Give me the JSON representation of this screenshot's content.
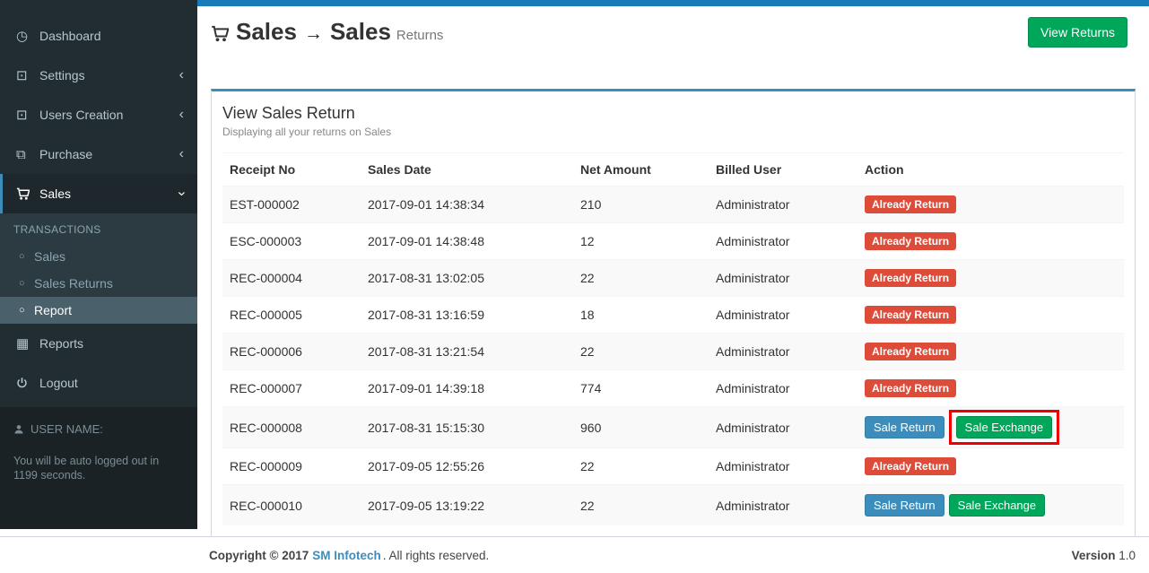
{
  "sidebar": {
    "items": [
      {
        "label": "Dashboard"
      },
      {
        "label": "Settings"
      },
      {
        "label": "Users Creation"
      },
      {
        "label": "Purchase"
      },
      {
        "label": "Sales"
      }
    ],
    "section_label": "TRANSACTIONS",
    "sub_items": [
      {
        "label": "Sales"
      },
      {
        "label": "Sales Returns"
      },
      {
        "label": "Report"
      }
    ],
    "other_items": [
      {
        "label": "Reports"
      },
      {
        "label": "Logout"
      }
    ],
    "user_label": "USER NAME:",
    "auto_logout_notice": "You will be auto logged out in 1199 seconds."
  },
  "icons": {
    "dashboard": "◷",
    "display": "⊡",
    "copy": "⧉",
    "circle": "○",
    "table": "▦",
    "chevron": "‹",
    "arrow": "→"
  },
  "header": {
    "title_primary": "Sales",
    "title_secondary": "Sales",
    "title_sub": "Returns",
    "view_returns_button": "View Returns"
  },
  "panel": {
    "title": "View Sales Return",
    "subtitle": "Displaying all your returns on Sales"
  },
  "labels": {
    "already_return": "Already Return",
    "sale_return": "Sale Return",
    "sale_exchange": "Sale Exchange"
  },
  "table": {
    "columns": [
      "Receipt No",
      "Sales Date",
      "Net Amount",
      "Billed User",
      "Action"
    ],
    "rows": [
      {
        "receipt_no": "EST-000002",
        "sales_date": "2017-09-01 14:38:34",
        "net_amount": "210",
        "billed_user": "Administrator",
        "actions": [
          {
            "type": "already_return"
          }
        ]
      },
      {
        "receipt_no": "ESC-000003",
        "sales_date": "2017-09-01 14:38:48",
        "net_amount": "12",
        "billed_user": "Administrator",
        "actions": [
          {
            "type": "already_return"
          }
        ]
      },
      {
        "receipt_no": "REC-000004",
        "sales_date": "2017-08-31 13:02:05",
        "net_amount": "22",
        "billed_user": "Administrator",
        "actions": [
          {
            "type": "already_return"
          }
        ]
      },
      {
        "receipt_no": "REC-000005",
        "sales_date": "2017-08-31 13:16:59",
        "net_amount": "18",
        "billed_user": "Administrator",
        "actions": [
          {
            "type": "already_return"
          }
        ]
      },
      {
        "receipt_no": "REC-000006",
        "sales_date": "2017-08-31 13:21:54",
        "net_amount": "22",
        "billed_user": "Administrator",
        "actions": [
          {
            "type": "already_return"
          }
        ]
      },
      {
        "receipt_no": "REC-000007",
        "sales_date": "2017-09-01 14:39:18",
        "net_amount": "774",
        "billed_user": "Administrator",
        "actions": [
          {
            "type": "already_return"
          }
        ]
      },
      {
        "receipt_no": "REC-000008",
        "sales_date": "2017-08-31 15:15:30",
        "net_amount": "960",
        "billed_user": "Administrator",
        "actions": [
          {
            "type": "sale_return"
          },
          {
            "type": "sale_exchange",
            "highlighted": true
          }
        ]
      },
      {
        "receipt_no": "REC-000009",
        "sales_date": "2017-09-05 12:55:26",
        "net_amount": "22",
        "billed_user": "Administrator",
        "actions": [
          {
            "type": "already_return"
          }
        ]
      },
      {
        "receipt_no": "REC-000010",
        "sales_date": "2017-09-05 13:19:22",
        "net_amount": "22",
        "billed_user": "Administrator",
        "actions": [
          {
            "type": "sale_return"
          },
          {
            "type": "sale_exchange"
          }
        ]
      }
    ]
  },
  "footer": {
    "copyright_bold": "Copyright © 2017",
    "company": "SM Infotech",
    "copyright_suffix": ". All rights reserved.",
    "version_bold": "Version",
    "version_value": "1.0"
  },
  "colors": {
    "accent_blue": "#3c8dbc",
    "success_green": "#00a65a",
    "danger_red": "#dd4b39",
    "highlight_red": "#ee0000",
    "sidebar_bg": "#222d32",
    "top_bar": "#1a7bb9"
  }
}
